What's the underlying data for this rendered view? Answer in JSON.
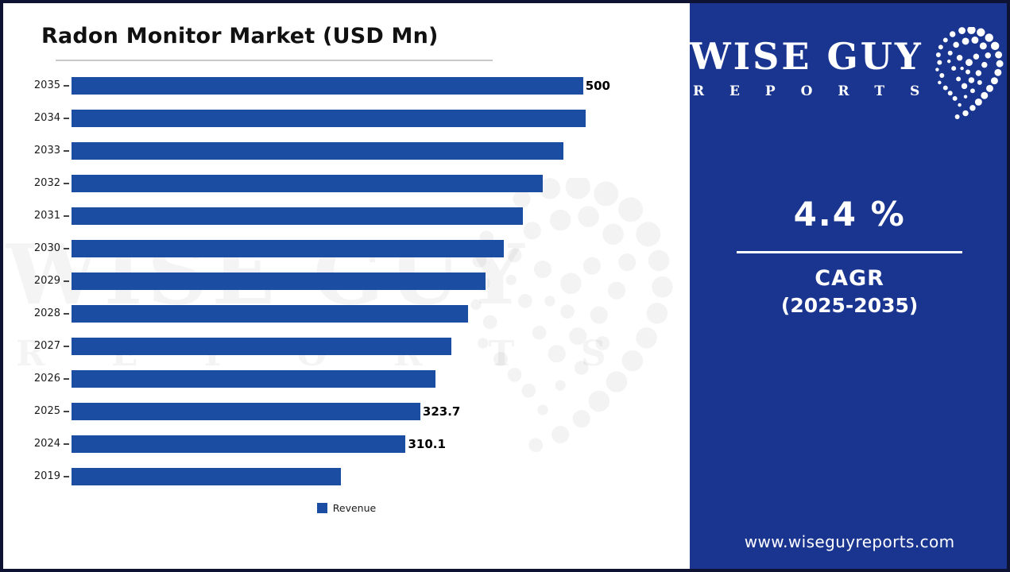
{
  "left_panel": {
    "title": "Radon Monitor Market (USD Mn)",
    "legend": {
      "label": "Revenue"
    },
    "watermark": {
      "line1": "WISE GUY",
      "line2": "R E P O R T S"
    }
  },
  "right_panel": {
    "logo": {
      "line1": "WISE GUY",
      "line2": "R E P O R T S"
    },
    "cagr_value": "4.4 %",
    "cagr_label": "CAGR",
    "cagr_period": "(2025-2035)",
    "website": "www.wiseguyreports.com",
    "background_color": "#1a3590"
  },
  "chart_data": {
    "type": "bar",
    "orientation": "horizontal",
    "title": "Radon Monitor Market (USD Mn)",
    "categories": [
      "2035",
      "2034",
      "2033",
      "2032",
      "2031",
      "2030",
      "2029",
      "2028",
      "2027",
      "2026",
      "2025",
      "2024",
      "2019"
    ],
    "values": [
      500,
      476.9,
      456.8,
      437.5,
      419.1,
      401.4,
      384.5,
      368.3,
      352.8,
      337.9,
      323.7,
      310.1,
      250
    ],
    "data_labels": {
      "2035": "500",
      "2025": "323.7",
      "2024": "310.1"
    },
    "xlabel": "",
    "ylabel": "",
    "xlim": [
      0,
      500
    ],
    "grid": false,
    "legend": [
      "Revenue"
    ],
    "legend_position": "bottom",
    "bar_color": "#1b4da3"
  }
}
